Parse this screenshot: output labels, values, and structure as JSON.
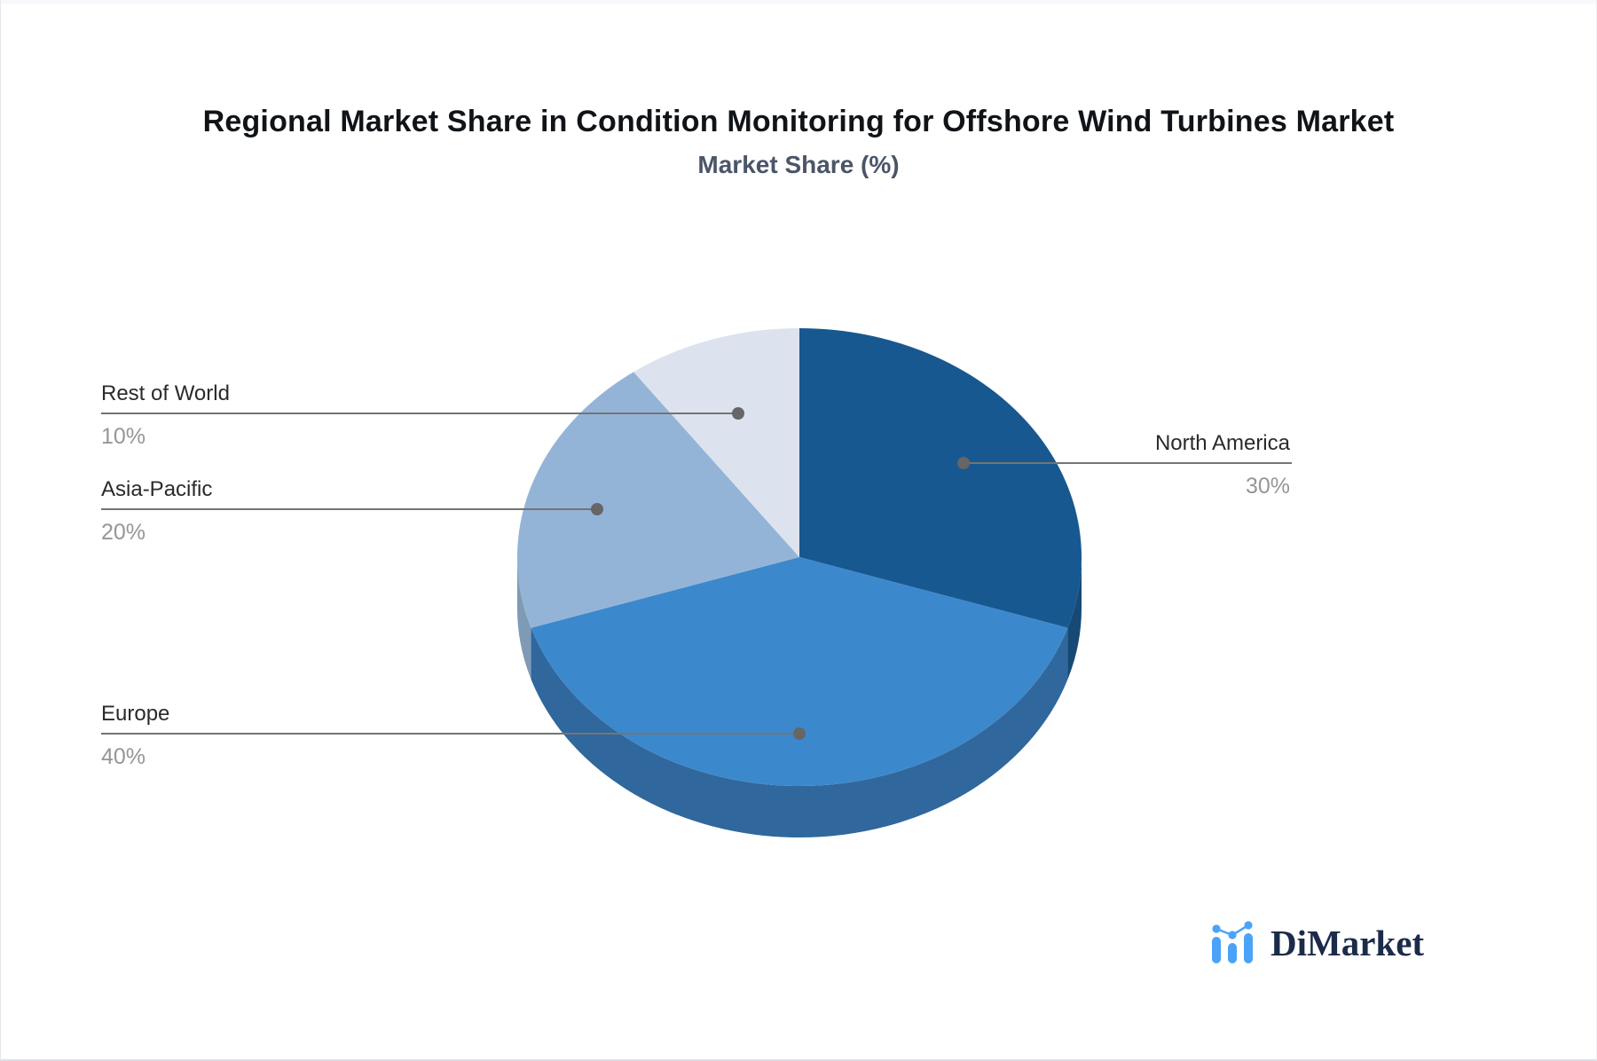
{
  "chart_data": {
    "type": "pie",
    "style": "3d",
    "title": "Regional Market Share in Condition Monitoring for Offshore Wind Turbines Market",
    "subtitle": "Market Share (%)",
    "unit": "%",
    "categories": [
      "North America",
      "Europe",
      "Asia-Pacific",
      "Rest of World"
    ],
    "values": [
      30,
      40,
      20,
      10
    ],
    "start_angle_deg": 0,
    "direction": "clockwise",
    "colors": [
      "#185890",
      "#3C88CD",
      "#94B4D7",
      "#DCE3EE"
    ],
    "side_colors": [
      "#164A75",
      "#30679C",
      "#7F9AB5",
      "#C9D2E0"
    ],
    "connector_color": "#747474",
    "dot_color": "#666666",
    "callouts": [
      {
        "name": "North America",
        "value": "30%",
        "side": "right"
      },
      {
        "name": "Europe",
        "value": "40%",
        "side": "left"
      },
      {
        "name": "Asia-Pacific",
        "value": "20%",
        "side": "left"
      },
      {
        "name": "Rest of World",
        "value": "10%",
        "side": "left"
      }
    ],
    "legend_position": "none",
    "grid": false
  },
  "logo": {
    "text": "DiMarket",
    "icon": "bar-chart-icon",
    "accent_color": "#4BA3F7",
    "text_color": "#1B2B49"
  }
}
